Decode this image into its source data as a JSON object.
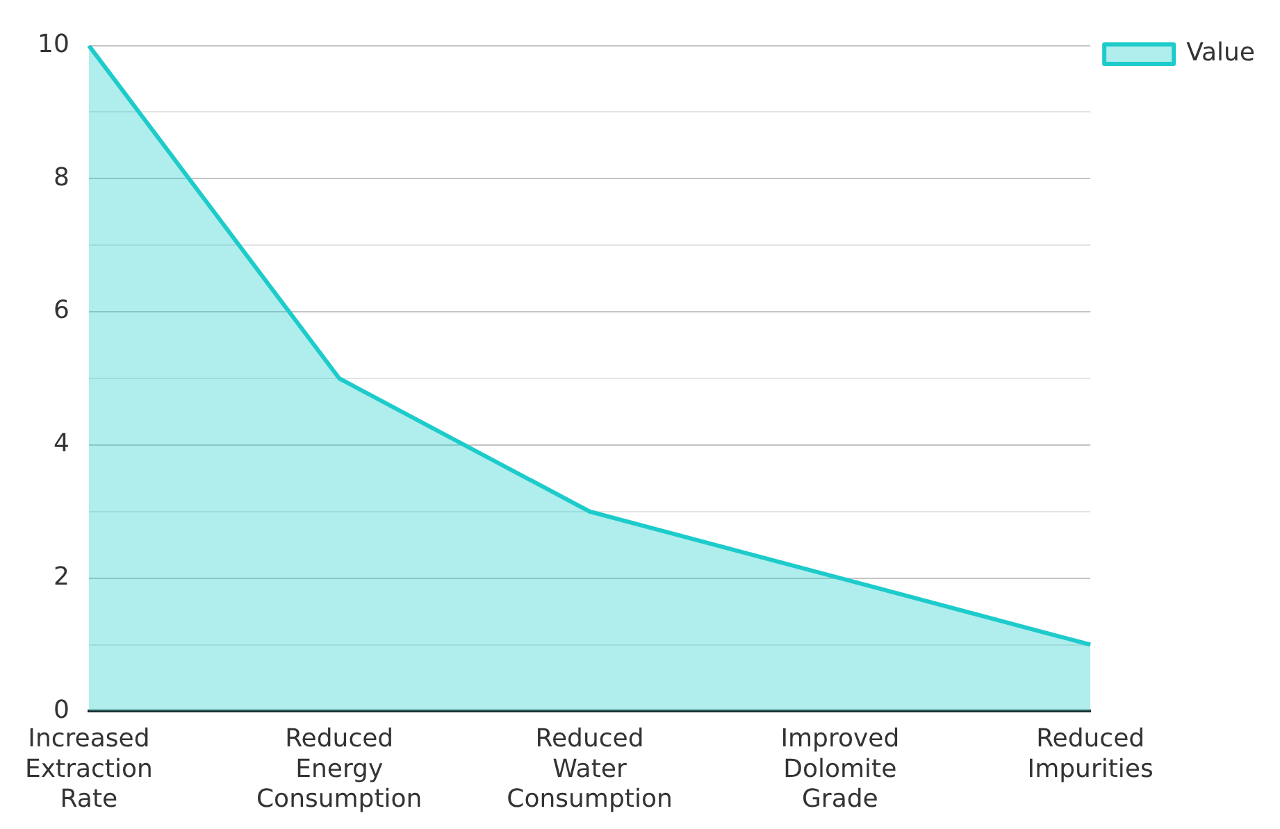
{
  "chart_data": {
    "type": "area",
    "categories": [
      "Increased Extraction Rate",
      "Reduced Energy Consumption",
      "Reduced Water Consumption",
      "Improved Dolomite Grade",
      "Reduced Impurities"
    ],
    "series": [
      {
        "name": "Value",
        "color": "#1ecbcb",
        "values": [
          10,
          5,
          3,
          2,
          1
        ]
      }
    ],
    "ylim": [
      0,
      10
    ],
    "yticks": [
      0,
      {
        "value": 1,
        "label": null
      },
      2,
      {
        "value": 3,
        "label": null
      },
      4,
      {
        "value": 5,
        "label": null
      },
      6,
      {
        "value": 7,
        "label": null
      },
      8,
      {
        "value": 9,
        "label": null
      },
      10
    ],
    "grid": "y",
    "legend": "top right",
    "marker": "none"
  }
}
